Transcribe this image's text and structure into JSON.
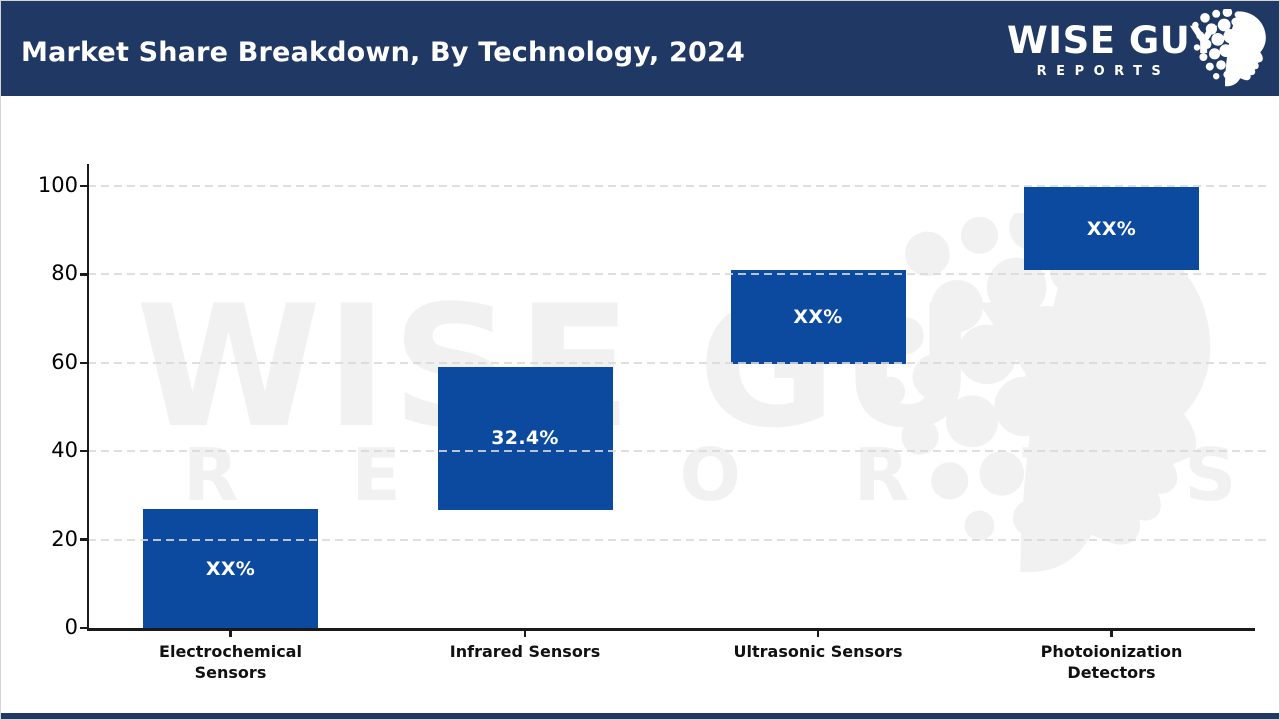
{
  "header": {
    "title": "Market Share Breakdown, By Technology, 2024",
    "logo": {
      "line1": "WISE GUY",
      "line2": "REPORTS"
    }
  },
  "watermark": {
    "line1": "WISE GUY",
    "line2": "R E P O R T S"
  },
  "colors": {
    "header_navy": "#1f3864",
    "bar_blue": "#0b4a9e",
    "gridline_gray": "#d9d9d9",
    "watermark_gray": "#f1f1f1",
    "axis_black": "#1a1a1a"
  },
  "chart_data": {
    "type": "bar",
    "subtype": "floating-waterfall",
    "title": "Market Share Breakdown, By Technology, 2024",
    "categories": [
      "Electrochemical Sensors",
      "Infrared Sensors",
      "Ultrasonic Sensors",
      "Photoionization Detectors"
    ],
    "bars": [
      {
        "category": "Electrochemical Sensors",
        "label": "XX%",
        "y0": 0,
        "y1": 26.9
      },
      {
        "category": "Infrared Sensors",
        "label": "32.4%",
        "y0": 26.7,
        "y1": 59.1,
        "value": 32.4
      },
      {
        "category": "Ultrasonic Sensors",
        "label": "XX%",
        "y0": 59.8,
        "y1": 81.0
      },
      {
        "category": "Photoionization Detectors",
        "label": "XX%",
        "y0": 81.0,
        "y1": 99.7
      }
    ],
    "xlabel": "",
    "ylabel": "",
    "ylim": [
      0,
      100
    ],
    "yticks": [
      0,
      20,
      40,
      60,
      80,
      100
    ],
    "grid": "horizontal-dashed",
    "legend": "none",
    "bar_label_color": "#ffffff"
  }
}
